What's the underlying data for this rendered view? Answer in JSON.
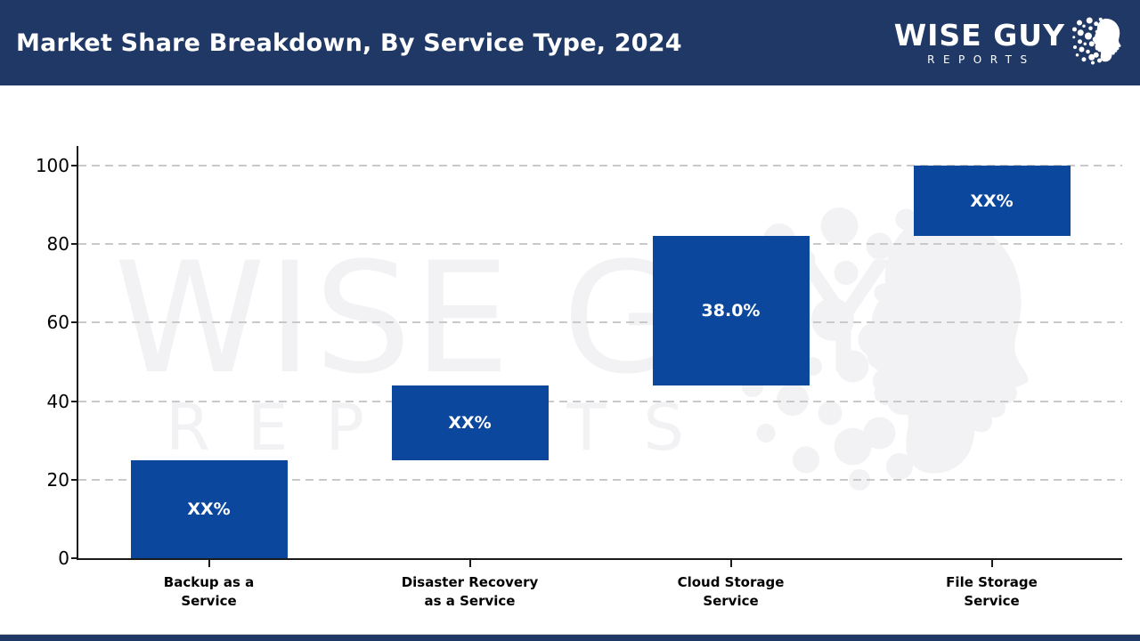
{
  "header": {
    "title": "Market Share Breakdown, By Service Type, 2024"
  },
  "logo": {
    "name": "WISE GUY",
    "reports": "REPORTS",
    "head_icon": "dotted-face-profile"
  },
  "watermark": {
    "name": "WISE GUY",
    "reports": "REPORTS",
    "head_icon": "dotted-face-profile"
  },
  "colors": {
    "header_bg": "#1f3865",
    "footer_bg": "#1f3865",
    "bar": "#0c479e",
    "bar_label_text": "#ffffff",
    "grid": "#c9c9c9",
    "axis": "#1a1a1a",
    "watermark": "#f2f2f4"
  },
  "chart_data": {
    "type": "bar",
    "subtype": "waterfall-floating-bars",
    "title": "Market Share Breakdown, By Service Type, 2024",
    "xlabel": "",
    "ylabel": "",
    "ylim": [
      0,
      100
    ],
    "yticks": [
      0,
      20,
      40,
      60,
      80,
      100
    ],
    "grid": "horizontal-dashed",
    "legend": "none",
    "categories": [
      [
        "Backup as a",
        "Service"
      ],
      [
        "Disaster Recovery",
        "as a Service"
      ],
      [
        "Cloud Storage",
        "Service"
      ],
      [
        "File Storage",
        "Service"
      ]
    ],
    "segments": [
      {
        "category": "Backup as a Service",
        "start": 0,
        "end": 25,
        "label": "XX%"
      },
      {
        "category": "Disaster Recovery as a Service",
        "start": 25,
        "end": 44,
        "label": "XX%"
      },
      {
        "category": "Cloud Storage Service",
        "start": 44,
        "end": 82,
        "label": "38.0%"
      },
      {
        "category": "File Storage Service",
        "start": 82,
        "end": 100,
        "label": "XX%"
      }
    ]
  }
}
